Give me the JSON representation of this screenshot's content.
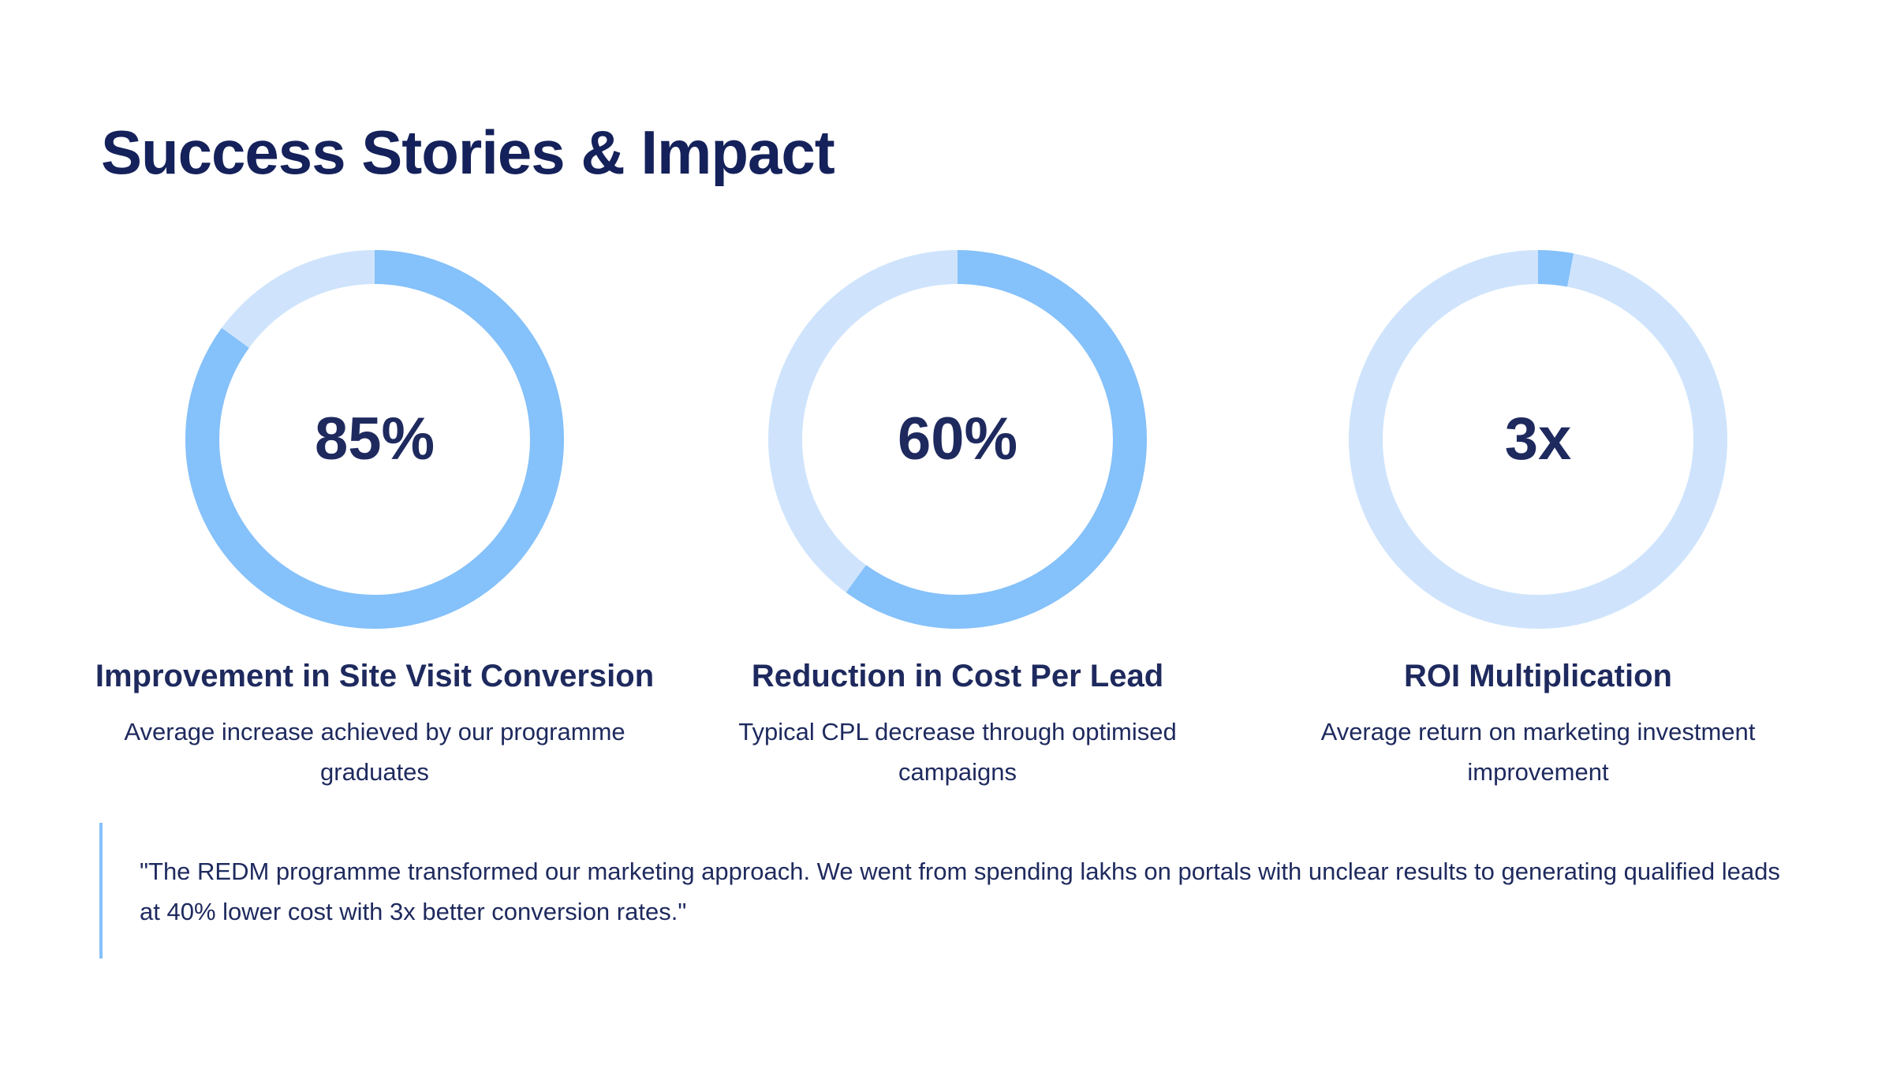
{
  "title": "Success Stories & Impact",
  "colors": {
    "fill": "#85c1fa",
    "track": "#cfe4fc",
    "text": "#1e2a5e"
  },
  "stats": [
    {
      "value": "85%",
      "fill_fraction": 0.85,
      "title": "Improvement in Site Visit Conversion",
      "description": "Average increase achieved by our programme graduates"
    },
    {
      "value": "60%",
      "fill_fraction": 0.6,
      "title": "Reduction in Cost Per Lead",
      "description": "Typical CPL decrease through optimised campaigns"
    },
    {
      "value": "3x",
      "fill_fraction": 0.03,
      "title": "ROI Multiplication",
      "description": "Average return on marketing investment improvement"
    }
  ],
  "quote": "\"The REDM programme transformed our marketing approach. We went from spending lakhs on portals with unclear results to generating qualified leads at 40% lower cost with 3x better conversion rates.\""
}
